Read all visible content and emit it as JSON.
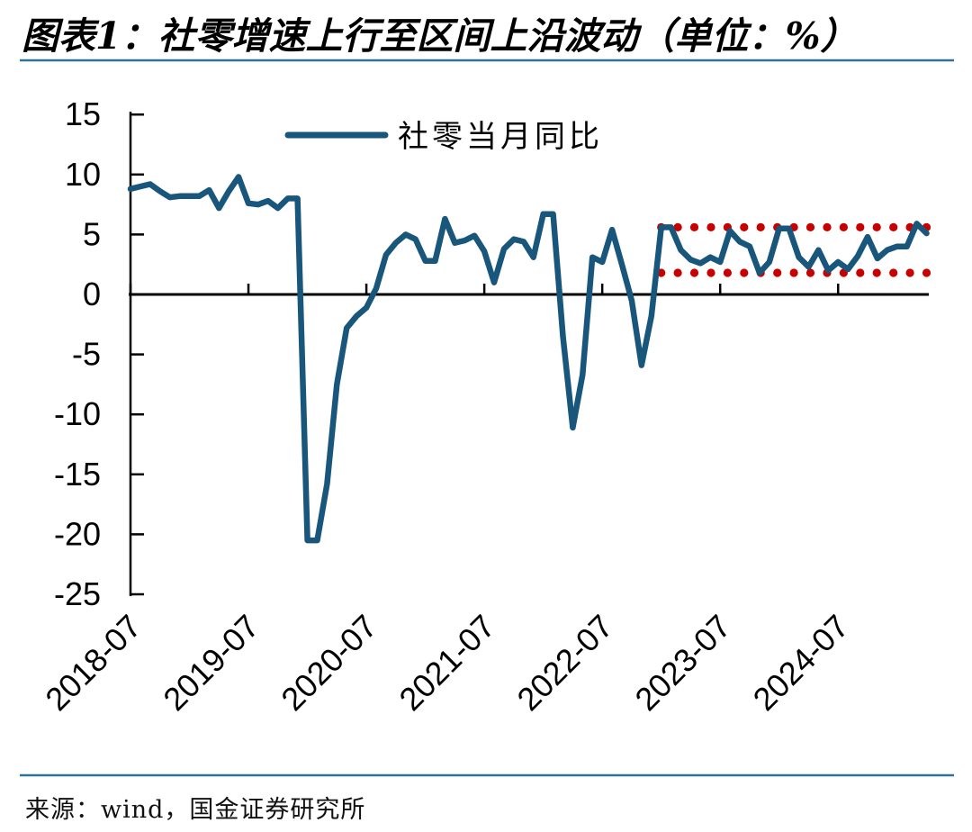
{
  "figure": {
    "title": "图表1：社零增速上行至区间上沿波动（单位：%）",
    "source": "来源：wind，国金证券研究所"
  },
  "chart_data": {
    "type": "line",
    "title": "图表1：社零增速上行至区间上沿波动（单位：%）",
    "unit": "%",
    "legend_position": "top-center",
    "grid": "off",
    "ylim": [
      -25,
      15
    ],
    "y_ticks": [
      15,
      10,
      5,
      0,
      -5,
      -10,
      -15,
      -20,
      -25
    ],
    "x_ticks": [
      "2018-07",
      "2019-07",
      "2020-07",
      "2021-07",
      "2022-07",
      "2023-07",
      "2024-07"
    ],
    "series": [
      {
        "name": "社零当月同比",
        "x": [
          "2018-07",
          "2018-08",
          "2018-09",
          "2018-10",
          "2018-11",
          "2018-12",
          "2019-01",
          "2019-02",
          "2019-03",
          "2019-04",
          "2019-05",
          "2019-06",
          "2019-07",
          "2019-08",
          "2019-09",
          "2019-10",
          "2019-11",
          "2019-12",
          "2020-01",
          "2020-02",
          "2020-03",
          "2020-04",
          "2020-05",
          "2020-06",
          "2020-07",
          "2020-08",
          "2020-09",
          "2020-10",
          "2020-11",
          "2020-12",
          "2021-01",
          "2021-02",
          "2021-03",
          "2021-04",
          "2021-05",
          "2021-06",
          "2021-07",
          "2021-08",
          "2021-09",
          "2021-10",
          "2021-11",
          "2021-12",
          "2022-01",
          "2022-02",
          "2022-03",
          "2022-04",
          "2022-05",
          "2022-06",
          "2022-07",
          "2022-08",
          "2022-09",
          "2022-10",
          "2022-11",
          "2022-12",
          "2023-01",
          "2023-02",
          "2023-03",
          "2023-04",
          "2023-05",
          "2023-06",
          "2023-07",
          "2023-08",
          "2023-09",
          "2023-10",
          "2023-11",
          "2023-12",
          "2024-01",
          "2024-02",
          "2024-03",
          "2024-04",
          "2024-05",
          "2024-06",
          "2024-07",
          "2024-08",
          "2024-09",
          "2024-10",
          "2024-11",
          "2024-12",
          "2025-01",
          "2025-02",
          "2025-03",
          "2025-04"
        ],
        "values": [
          8.8,
          9.0,
          9.2,
          8.6,
          8.1,
          8.2,
          8.2,
          8.2,
          8.7,
          7.2,
          8.6,
          9.8,
          7.6,
          7.5,
          7.8,
          7.2,
          8.0,
          8.0,
          -20.5,
          -20.5,
          -15.8,
          -7.5,
          -2.8,
          -1.8,
          -1.1,
          0.5,
          3.3,
          4.3,
          5.0,
          4.6,
          2.8,
          2.8,
          6.3,
          4.3,
          4.5,
          4.9,
          3.6,
          1.0,
          3.8,
          4.6,
          4.4,
          3.1,
          6.7,
          6.7,
          -3.5,
          -11.1,
          -6.7,
          3.1,
          2.7,
          5.4,
          2.5,
          -0.5,
          -5.9,
          -1.8,
          5.6,
          5.6,
          3.7,
          2.9,
          2.6,
          3.1,
          2.7,
          5.3,
          4.4,
          4.0,
          1.8,
          2.7,
          5.5,
          5.5,
          3.1,
          2.3,
          3.7,
          2.0,
          2.7,
          2.1,
          3.2,
          4.8,
          3.0,
          3.7,
          4.0,
          4.0,
          5.9,
          5.1
        ]
      }
    ],
    "reference_band": {
      "label": "区间上下沿（红色虚线点）",
      "upper": 5.6,
      "lower": 1.8,
      "x_start": "2023-01",
      "x_end": "2025-04",
      "style": "red-dotted"
    },
    "source": "来源：wind，国金证券研究所",
    "colors": {
      "series_line": "#19567B",
      "band_dots": "#C90000",
      "axis": "#000000",
      "divider": "#2E7396"
    }
  }
}
